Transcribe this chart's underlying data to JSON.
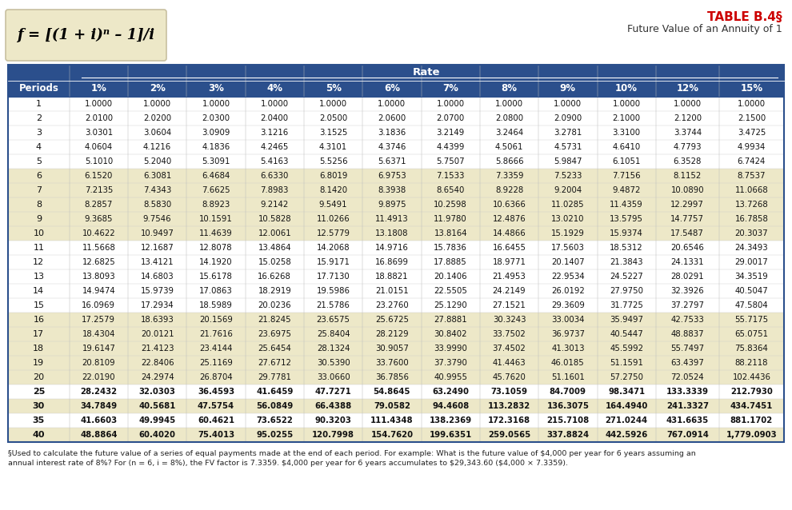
{
  "title": "TABLE B.4§",
  "subtitle": "Future Value of an Annuity of 1",
  "rate_label": "Rate",
  "col_headers": [
    "Periods",
    "1%",
    "2%",
    "3%",
    "4%",
    "5%",
    "6%",
    "7%",
    "8%",
    "9%",
    "10%",
    "12%",
    "15%"
  ],
  "periods": [
    1,
    2,
    3,
    4,
    5,
    6,
    7,
    8,
    9,
    10,
    11,
    12,
    13,
    14,
    15,
    16,
    17,
    18,
    19,
    20,
    25,
    30,
    35,
    40
  ],
  "data": [
    [
      1.0,
      1.0,
      1.0,
      1.0,
      1.0,
      1.0,
      1.0,
      1.0,
      1.0,
      1.0,
      1.0,
      1.0
    ],
    [
      2.01,
      2.02,
      2.03,
      2.04,
      2.05,
      2.06,
      2.07,
      2.08,
      2.09,
      2.1,
      2.12,
      2.15
    ],
    [
      3.0301,
      3.0604,
      3.0909,
      3.1216,
      3.1525,
      3.1836,
      3.2149,
      3.2464,
      3.2781,
      3.31,
      3.3744,
      3.4725
    ],
    [
      4.0604,
      4.1216,
      4.1836,
      4.2465,
      4.3101,
      4.3746,
      4.4399,
      4.5061,
      4.5731,
      4.641,
      4.7793,
      4.9934
    ],
    [
      5.101,
      5.204,
      5.3091,
      5.4163,
      5.5256,
      5.6371,
      5.7507,
      5.8666,
      5.9847,
      6.1051,
      6.3528,
      6.7424
    ],
    [
      6.152,
      6.3081,
      6.4684,
      6.633,
      6.8019,
      6.9753,
      7.1533,
      7.3359,
      7.5233,
      7.7156,
      8.1152,
      8.7537
    ],
    [
      7.2135,
      7.4343,
      7.6625,
      7.8983,
      8.142,
      8.3938,
      8.654,
      8.9228,
      9.2004,
      9.4872,
      10.089,
      11.0668
    ],
    [
      8.2857,
      8.583,
      8.8923,
      9.2142,
      9.5491,
      9.8975,
      10.2598,
      10.6366,
      11.0285,
      11.4359,
      12.2997,
      13.7268
    ],
    [
      9.3685,
      9.7546,
      10.1591,
      10.5828,
      11.0266,
      11.4913,
      11.978,
      12.4876,
      13.021,
      13.5795,
      14.7757,
      16.7858
    ],
    [
      10.4622,
      10.9497,
      11.4639,
      12.0061,
      12.5779,
      13.1808,
      13.8164,
      14.4866,
      15.1929,
      15.9374,
      17.5487,
      20.3037
    ],
    [
      11.5668,
      12.1687,
      12.8078,
      13.4864,
      14.2068,
      14.9716,
      15.7836,
      16.6455,
      17.5603,
      18.5312,
      20.6546,
      24.3493
    ],
    [
      12.6825,
      13.4121,
      14.192,
      15.0258,
      15.9171,
      16.8699,
      17.8885,
      18.9771,
      20.1407,
      21.3843,
      24.1331,
      29.0017
    ],
    [
      13.8093,
      14.6803,
      15.6178,
      16.6268,
      17.713,
      18.8821,
      20.1406,
      21.4953,
      22.9534,
      24.5227,
      28.0291,
      34.3519
    ],
    [
      14.9474,
      15.9739,
      17.0863,
      18.2919,
      19.5986,
      21.0151,
      22.5505,
      24.2149,
      26.0192,
      27.975,
      32.3926,
      40.5047
    ],
    [
      16.0969,
      17.2934,
      18.5989,
      20.0236,
      21.5786,
      23.276,
      25.129,
      27.1521,
      29.3609,
      31.7725,
      37.2797,
      47.5804
    ],
    [
      17.2579,
      18.6393,
      20.1569,
      21.8245,
      23.6575,
      25.6725,
      27.8881,
      30.3243,
      33.0034,
      35.9497,
      42.7533,
      55.7175
    ],
    [
      18.4304,
      20.0121,
      21.7616,
      23.6975,
      25.8404,
      28.2129,
      30.8402,
      33.7502,
      36.9737,
      40.5447,
      48.8837,
      65.0751
    ],
    [
      19.6147,
      21.4123,
      23.4144,
      25.6454,
      28.1324,
      30.9057,
      33.999,
      37.4502,
      41.3013,
      45.5992,
      55.7497,
      75.8364
    ],
    [
      20.8109,
      22.8406,
      25.1169,
      27.6712,
      30.539,
      33.76,
      37.379,
      41.4463,
      46.0185,
      51.1591,
      63.4397,
      88.2118
    ],
    [
      22.019,
      24.2974,
      26.8704,
      29.7781,
      33.066,
      36.7856,
      40.9955,
      45.762,
      51.1601,
      57.275,
      72.0524,
      102.4436
    ],
    [
      28.2432,
      32.0303,
      36.4593,
      41.6459,
      47.7271,
      54.8645,
      63.249,
      73.1059,
      84.7009,
      98.3471,
      133.3339,
      212.793
    ],
    [
      34.7849,
      40.5681,
      47.5754,
      56.0849,
      66.4388,
      79.0582,
      94.4608,
      113.2832,
      136.3075,
      164.494,
      241.3327,
      434.7451
    ],
    [
      41.6603,
      49.9945,
      60.4621,
      73.6522,
      90.3203,
      111.4348,
      138.2369,
      172.3168,
      215.7108,
      271.0244,
      431.6635,
      881.1702
    ],
    [
      48.8864,
      60.402,
      75.4013,
      95.0255,
      120.7998,
      154.762,
      199.6351,
      259.0565,
      337.8824,
      442.5926,
      767.0914,
      1779.0903
    ]
  ],
  "footnote_line1": "§Used to calculate the future value of a series of equal payments made at the end of each period. For example: What is the future value of $4,000 per year for 6 years assuming an",
  "footnote_line2": "annual interest rate of 8%? For (n = 6, i = 8%), the FV factor is 7.3359. $4,000 per year for 6 years accumulates to $29,343.60 ($4,000 × 7.3359).",
  "header_bg": "#2B4F8C",
  "header_text": "#FFFFFF",
  "row_odd_bg": "#FFFFFF",
  "row_even_bg": "#EDE8C8",
  "formula_bg": "#EDE8C8",
  "formula_border": "#C8C0A0",
  "title_color": "#CC0000",
  "table_border_color": "#2B4F8C",
  "shaded_periods": [
    6,
    7,
    8,
    9,
    10,
    16,
    17,
    18,
    19,
    20,
    30,
    40
  ],
  "bold_periods": [
    25,
    30,
    35,
    40
  ]
}
